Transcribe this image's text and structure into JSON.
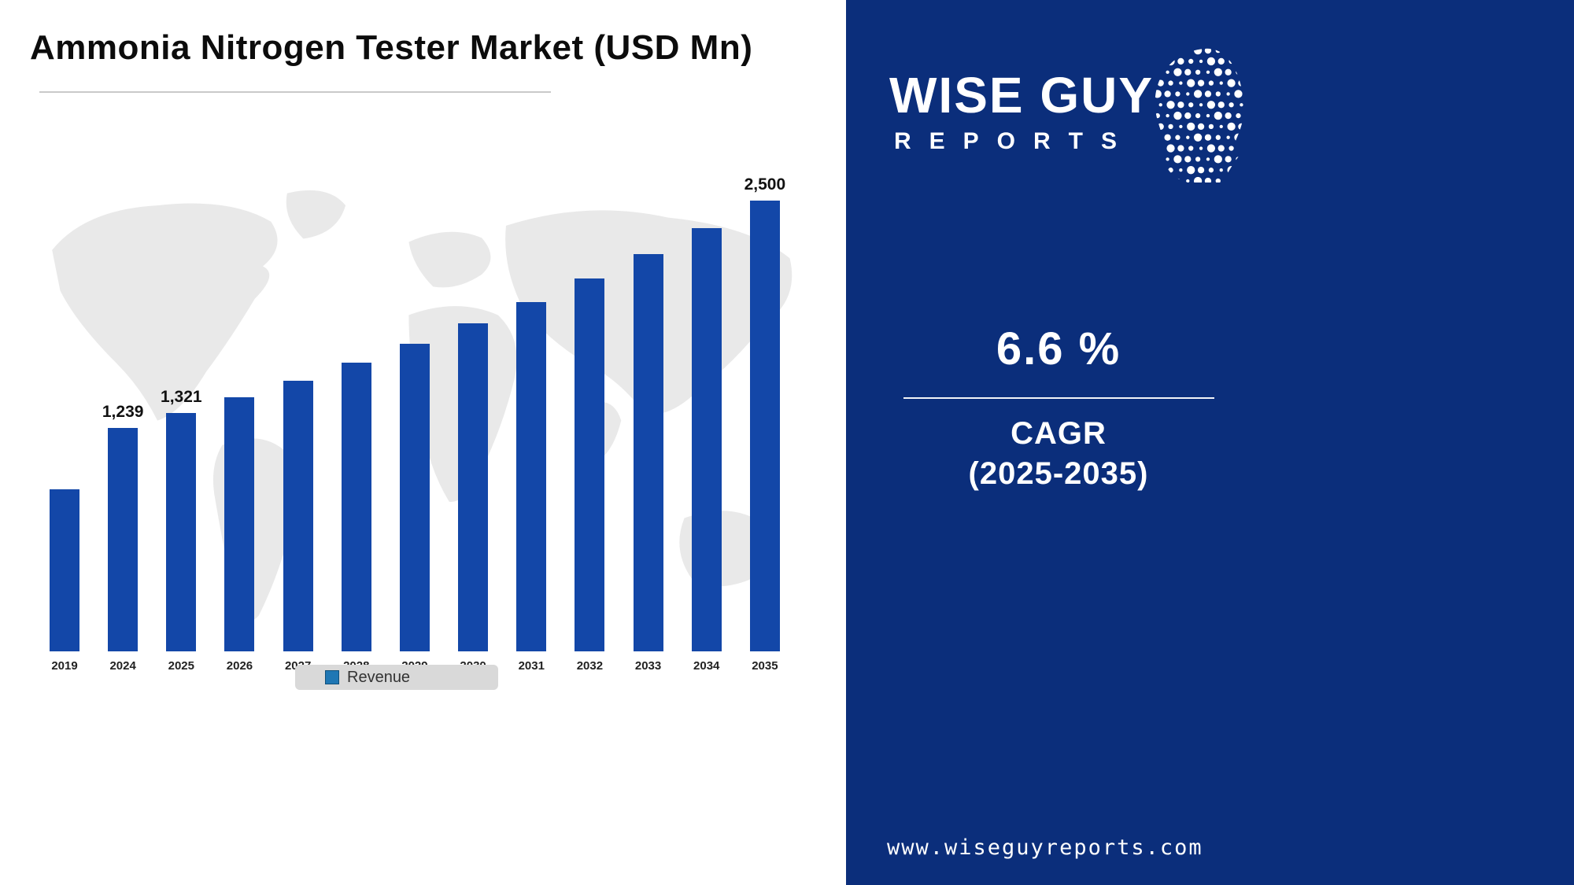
{
  "title": "Ammonia Nitrogen Tester Market (USD Mn)",
  "chart_data": {
    "type": "bar",
    "title": "Ammonia Nitrogen Tester Market (USD Mn)",
    "categories": [
      "2019",
      "2024",
      "2025",
      "2026",
      "2027",
      "2028",
      "2029",
      "2030",
      "2031",
      "2032",
      "2033",
      "2034",
      "2035"
    ],
    "values": [
      900,
      1239,
      1321,
      1408,
      1501,
      1600,
      1706,
      1818,
      1938,
      2066,
      2203,
      2348,
      2500
    ],
    "data_labels": [
      "",
      "1,239",
      "1,321",
      "",
      "",
      "",
      "",
      "",
      "",
      "",
      "",
      "",
      "2,500"
    ],
    "xlabel": "",
    "ylabel": "",
    "ylim": [
      0,
      2500
    ],
    "grid": false,
    "legend_position": "bottom",
    "legend_entries": [
      "Revenue"
    ],
    "bar_color": "#1347a8"
  },
  "legend": {
    "label": "Revenue",
    "swatch_color": "#1f77b4"
  },
  "sidebar": {
    "bg_color": "#0b2e7b",
    "logo_line1": "WISE GUY",
    "logo_line2": "REPORTS",
    "cagr_value": "6.6 %",
    "cagr_label1": "CAGR",
    "cagr_label2": "(2025-2035)",
    "website": "www.wiseguyreports.com"
  }
}
